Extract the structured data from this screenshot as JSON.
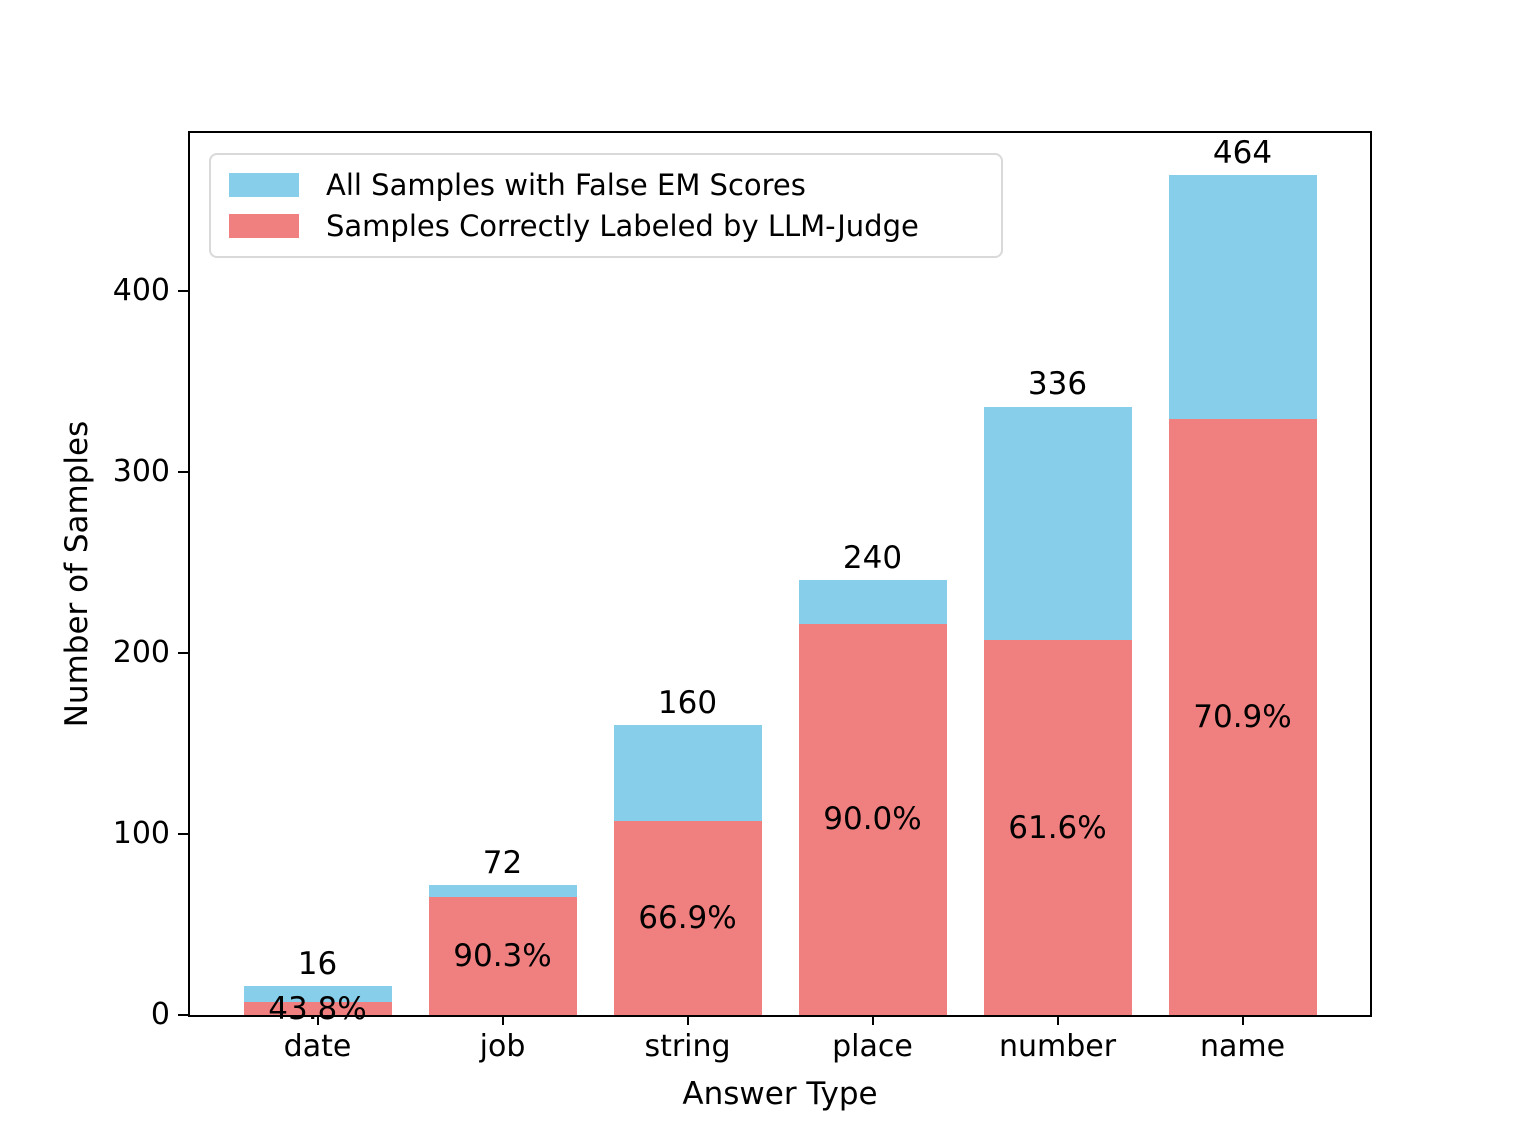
{
  "chart_data": {
    "type": "bar",
    "stacked_overlay": true,
    "title": "",
    "xlabel": "Answer Type",
    "ylabel": "Number of Samples",
    "categories": [
      "date",
      "job",
      "string",
      "place",
      "number",
      "name"
    ],
    "series": [
      {
        "name": "All Samples with False EM Scores",
        "color": "#87ceeb",
        "values": [
          16,
          72,
          160,
          240,
          336,
          464
        ]
      },
      {
        "name": "Samples Correctly Labeled by LLM-Judge",
        "color": "#f08080",
        "values": [
          7,
          65,
          107,
          216,
          207,
          329
        ]
      }
    ],
    "total_labels": [
      "16",
      "72",
      "160",
      "240",
      "336",
      "464"
    ],
    "percent_labels": [
      "43.8%",
      "90.3%",
      "66.9%",
      "90.0%",
      "61.6%",
      "70.9%"
    ],
    "yticks": [
      0,
      100,
      200,
      300,
      400
    ],
    "ytick_labels": [
      "0",
      "100",
      "200",
      "300",
      "400"
    ],
    "ylim": [
      0,
      487
    ],
    "grid": false,
    "legend_position": "upper left",
    "frame_color": "#000000",
    "background_color": "#ffffff"
  }
}
